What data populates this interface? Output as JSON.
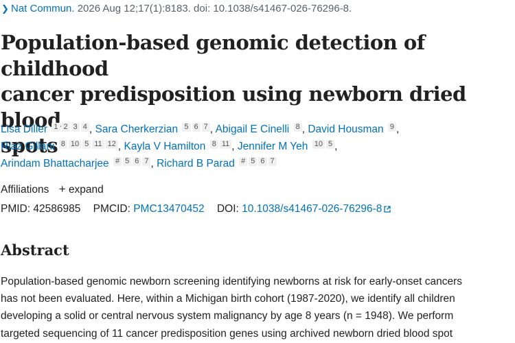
{
  "citation": {
    "journal": "Nat Commun.",
    "details": "2026 Aug 12;17(1):8183. doi: 10.1038/s41467-026-76296-8."
  },
  "title": {
    "lines": [
      "Population-based genomic detection of childhood",
      "cancer predisposition using newborn dried blood",
      "spots"
    ]
  },
  "authors": {
    "a1": {
      "name": "Lisa Diller",
      "affs": [
        "1",
        "2",
        "3",
        "4"
      ]
    },
    "a2": {
      "name": "Sara Cherkerzian",
      "affs": [
        "5",
        "6",
        "7"
      ]
    },
    "a3": {
      "name": "Abigail E Cinelli",
      "affs": [
        "8"
      ]
    },
    "a4": {
      "name": "David Housman",
      "affs": [
        "9"
      ]
    },
    "a5": {
      "name": "Riaz Gillani",
      "affs": [
        "8",
        "10",
        "5",
        "11",
        "12"
      ]
    },
    "a6": {
      "name": "Kayla V Hamilton",
      "affs": [
        "8",
        "11"
      ]
    },
    "a7": {
      "name": "Jennifer M Yeh",
      "affs": [
        "10",
        "5"
      ]
    },
    "a8": {
      "name": "Arindam Bhattacharjee",
      "affs": [
        "#",
        "5",
        "6",
        "7"
      ]
    },
    "a9": {
      "name": "Richard B Parad",
      "affs": [
        "#",
        "5",
        "6",
        "7"
      ]
    },
    "separator": ","
  },
  "affiliations": {
    "label": "Affiliations",
    "expand_icon": "+",
    "expand_label": "expand"
  },
  "identifiers": {
    "pmid_label": "PMID:",
    "pmid": "42586985",
    "pmcid_label": "PMCID:",
    "pmcid": "PMC13470452",
    "doi_label": "DOI:",
    "doi": "10.1038/s41467-026-76296-8"
  },
  "abstract": {
    "heading": "Abstract",
    "lines": [
      "Population-based genomic newborn screening identifying newborns at risk for early-onset cancers",
      "has not been evaluated. Here, within a Michigan birth cohort (1987-2020), we identify all children",
      "developing a solid or central nervous system malignancy by age 8 years (n = 1948). We perform",
      "targeted sequencing of 11 cancer predisposition genes using archived newborn dried blood spot"
    ]
  },
  "colors": {
    "link": "#0071bc",
    "text": "#212121",
    "muted": "#5b616b",
    "sup_bg": "#f0f0f0"
  },
  "icons": {
    "citation_chevron": "chevron-right-icon",
    "external_link": "external-link-icon",
    "expand": "plus-icon"
  }
}
